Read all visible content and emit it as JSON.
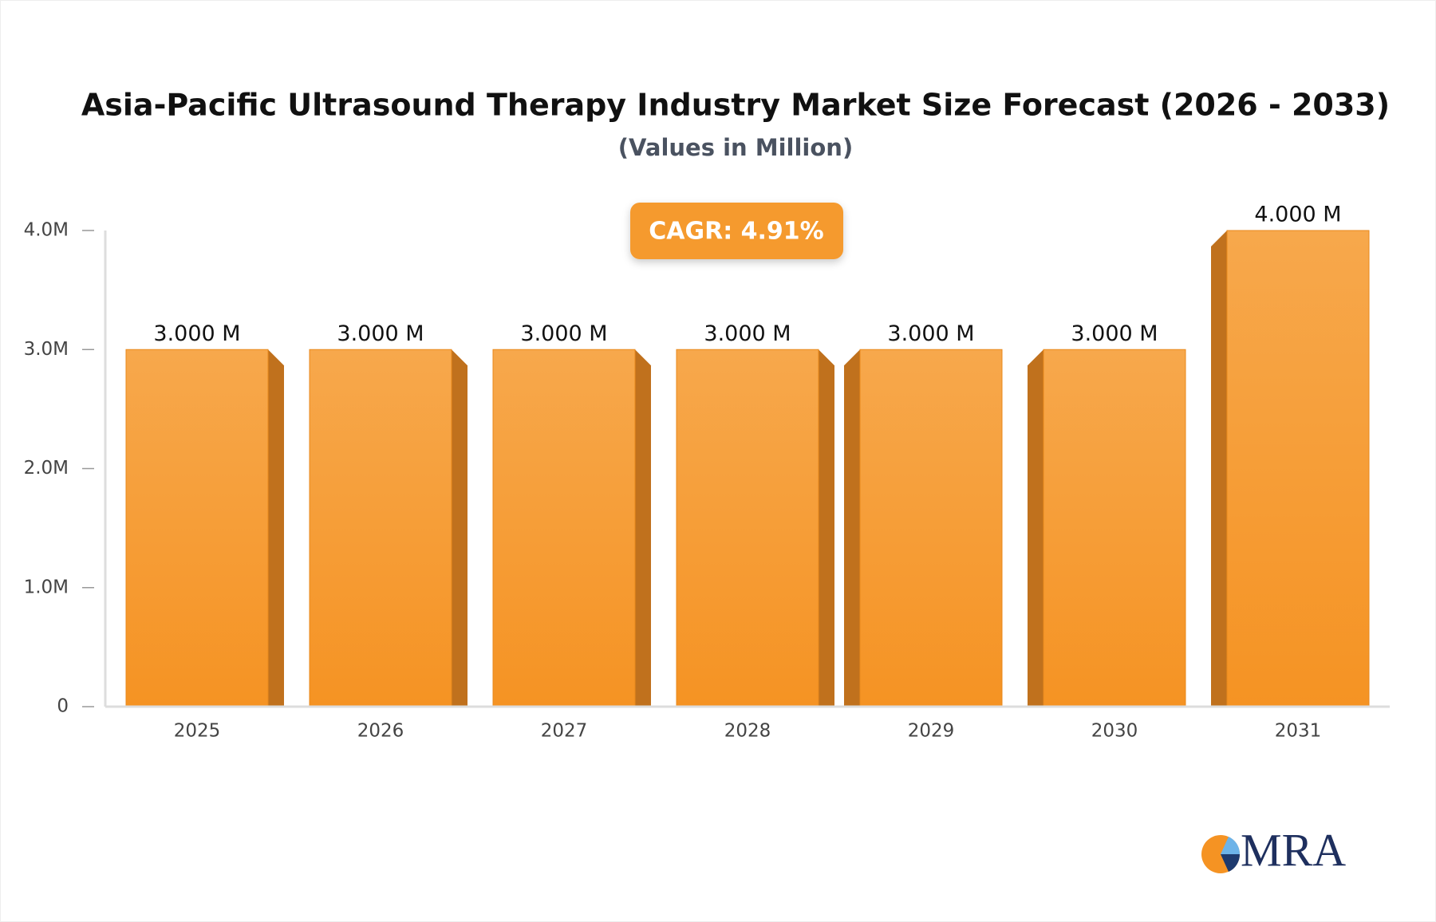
{
  "chart_data": {
    "type": "bar",
    "title": "Asia-Pacific Ultrasound Therapy Industry Market Size Forecast (2026 - 2033)",
    "subtitle": "(Values in Million)",
    "annotation": "CAGR: 4.91%",
    "logo": "MRA",
    "categories": [
      "2025",
      "2026",
      "2027",
      "2028",
      "2029",
      "2030",
      "2031"
    ],
    "values": [
      3,
      3,
      3,
      3,
      3,
      3,
      4
    ],
    "value_labels": [
      "3.000 M",
      "3.000 M",
      "3.000 M",
      "3.000 M",
      "3.000 M",
      "3.000 M",
      "4.000 M"
    ],
    "color": "#f69a30",
    "ylim": [
      0,
      4
    ],
    "yticks": [
      0,
      {
        "value": 1,
        "label": "1.0M"
      },
      {
        "value": 2,
        "label": "2.0M"
      },
      {
        "value": 3,
        "label": "3.0M"
      },
      {
        "value": 4,
        "label": "4.0M"
      }
    ],
    "grid": false
  }
}
